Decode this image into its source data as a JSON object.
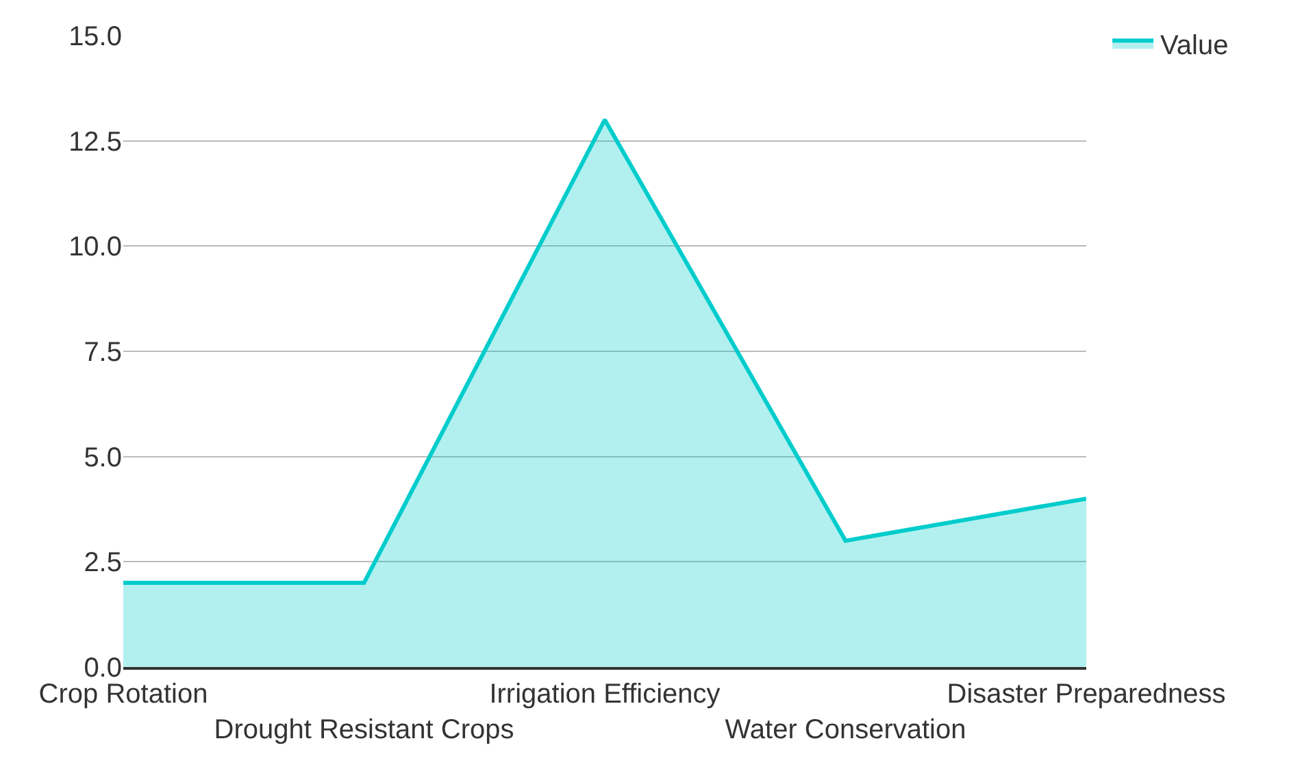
{
  "chart_data": {
    "type": "area",
    "categories": [
      "Crop Rotation",
      "Drought Resistant Crops",
      "Irrigation Efficiency",
      "Water Conservation",
      "Disaster Preparedness"
    ],
    "series": [
      {
        "name": "Value",
        "color": "#00cccc",
        "values": [
          2,
          2,
          13,
          3,
          4
        ]
      }
    ],
    "ylim": [
      0,
      15
    ],
    "yticks": [
      {
        "value": 0,
        "label": "0.0"
      },
      {
        "value": 2.5,
        "label": "2.5"
      },
      {
        "value": 5,
        "label": "5.0"
      },
      {
        "value": 7.5,
        "label": "7.5"
      },
      {
        "value": 10,
        "label": "10.0"
      },
      {
        "value": 12.5,
        "label": "12.5"
      },
      {
        "value": 15,
        "label": "15.0"
      }
    ],
    "grid": "y",
    "legend": "top right",
    "marker": "none",
    "line_style": "solid"
  }
}
